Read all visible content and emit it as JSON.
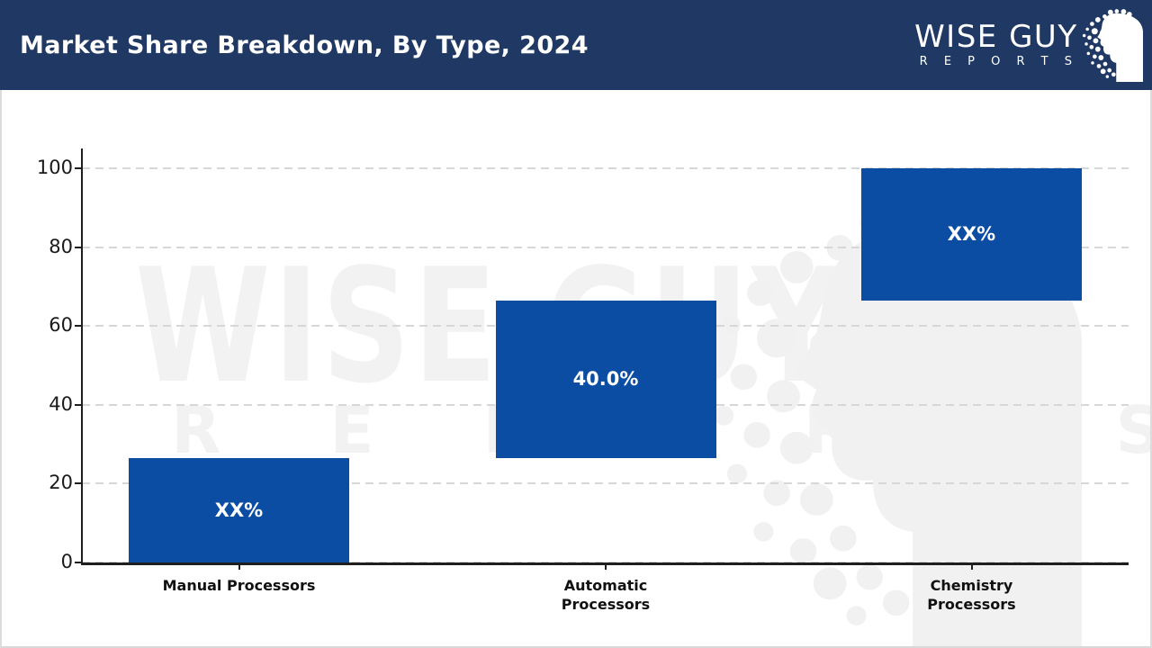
{
  "header": {
    "title": "Market Share Breakdown, By Type, 2024",
    "bg_color": "#1f3864",
    "logo": {
      "line1": "WISE GUY",
      "line2": "R E P O R T S"
    }
  },
  "watermark": {
    "line1": "WISE GUY",
    "line2": "R E P O R T S"
  },
  "chart_data": {
    "type": "bar",
    "variant": "floating-waterfall",
    "title": "Market Share Breakdown, By Type, 2024",
    "categories": [
      "Manual Processors",
      "Automatic Processors",
      "Chemistry Processors"
    ],
    "category_lines": [
      [
        "Manual Processors"
      ],
      [
        "Automatic",
        "Processors"
      ],
      [
        "Chemistry",
        "Processors"
      ]
    ],
    "segments": [
      {
        "category": "Manual Processors",
        "base": 0,
        "top": 26.5,
        "label": "XX%"
      },
      {
        "category": "Automatic Processors",
        "base": 26.5,
        "top": 66.5,
        "label": "40.0%"
      },
      {
        "category": "Chemistry Processors",
        "base": 66.5,
        "top": 100,
        "label": "XX%"
      }
    ],
    "xlabel": "",
    "ylabel": "",
    "yticks": [
      0,
      20,
      40,
      60,
      80,
      100
    ],
    "ylim": [
      0,
      105
    ],
    "bar_color": "#0b4da2",
    "grid": true,
    "grid_style": "dashed",
    "legend": "none"
  }
}
